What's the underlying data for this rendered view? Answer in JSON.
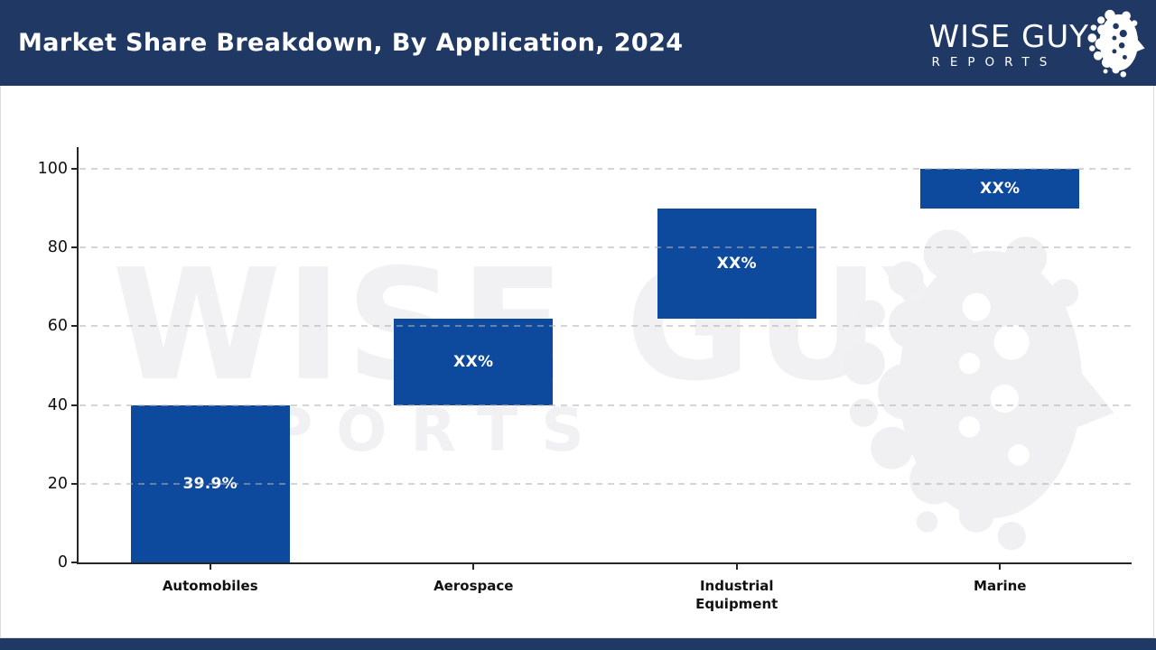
{
  "header": {
    "title": "Market Share Breakdown, By Application, 2024",
    "logo_line1": "WISE GUY",
    "logo_line2": "REPORTS"
  },
  "watermark": {
    "line1": "WISE GUY",
    "line2": "REPORTS"
  },
  "chart_data": {
    "type": "bar",
    "subtype": "floating-waterfall-bars",
    "title": "Market Share Breakdown, By Application, 2024",
    "categories": [
      "Automobiles",
      "Aerospace",
      "Industrial\nEquipment",
      "Marine"
    ],
    "bars": [
      {
        "category": "Automobiles",
        "label": "39.9%",
        "start": 0,
        "end": 39.9
      },
      {
        "category": "Aerospace",
        "label": "XX%",
        "start": 39.9,
        "end": 62
      },
      {
        "category": "Industrial Equipment",
        "label": "XX%",
        "start": 62,
        "end": 90
      },
      {
        "category": "Marine",
        "label": "XX%",
        "start": 90,
        "end": 100
      }
    ],
    "y_ticks": [
      0,
      20,
      40,
      60,
      80,
      100
    ],
    "ylim": [
      0,
      105
    ],
    "xlabel": "",
    "ylabel": "",
    "grid": "horizontal-dashed",
    "legend": "none",
    "bar_color": "#0d499d",
    "bar_label_color": "#ffffff"
  },
  "colors": {
    "header_bg": "#203864",
    "footer_bg": "#203864",
    "bar": "#0d499d",
    "axis": "#262626",
    "watermark": "#f1f1f4"
  }
}
